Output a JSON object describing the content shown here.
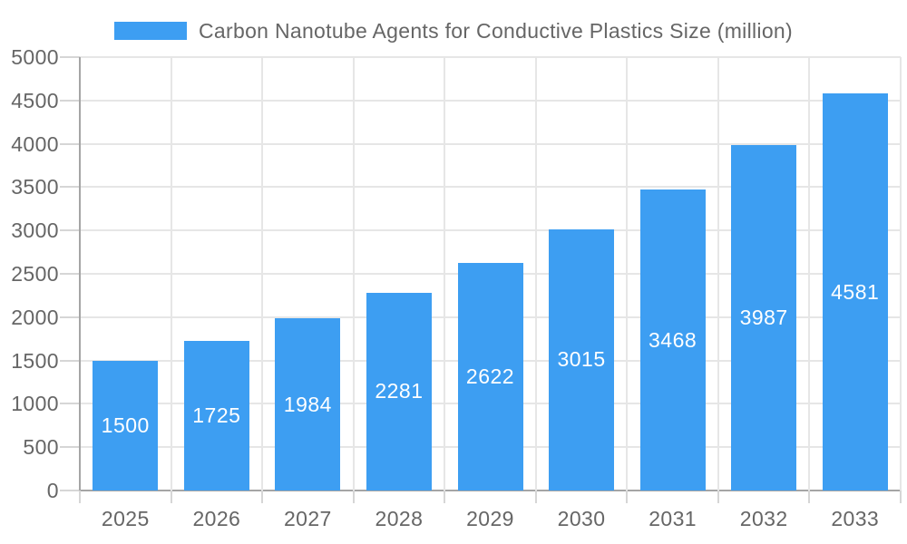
{
  "colors": {
    "bar": "#3D9EF2",
    "bar_label": "#FFFFFF",
    "axis_text": "#666666",
    "grid": "#E6E6E6",
    "tick": "#D6D6D6",
    "axis_line": "#A5A5A5",
    "background": "#FFFFFF"
  },
  "chart_data": {
    "type": "bar",
    "title": "Carbon Nanotube Agents for Conductive Plastics Size (million)",
    "legend": [
      "Carbon Nanotube Agents for Conductive Plastics Size (million)"
    ],
    "legend_position": "top",
    "categories": [
      "2025",
      "2026",
      "2027",
      "2028",
      "2029",
      "2030",
      "2031",
      "2032",
      "2033"
    ],
    "series": [
      {
        "name": "Carbon Nanotube Agents for Conductive Plastics Size (million)",
        "values": [
          1500,
          1725,
          1984,
          2281,
          2622,
          3015,
          3468,
          3987,
          4581
        ]
      }
    ],
    "xlabel": "",
    "ylabel": "",
    "ylim": [
      0,
      5000
    ],
    "ytick_step": 500,
    "yticks": [
      0,
      500,
      1000,
      1500,
      2000,
      2500,
      3000,
      3500,
      4000,
      4500,
      5000
    ],
    "grid": "on",
    "value_labels": "inside-middle"
  }
}
